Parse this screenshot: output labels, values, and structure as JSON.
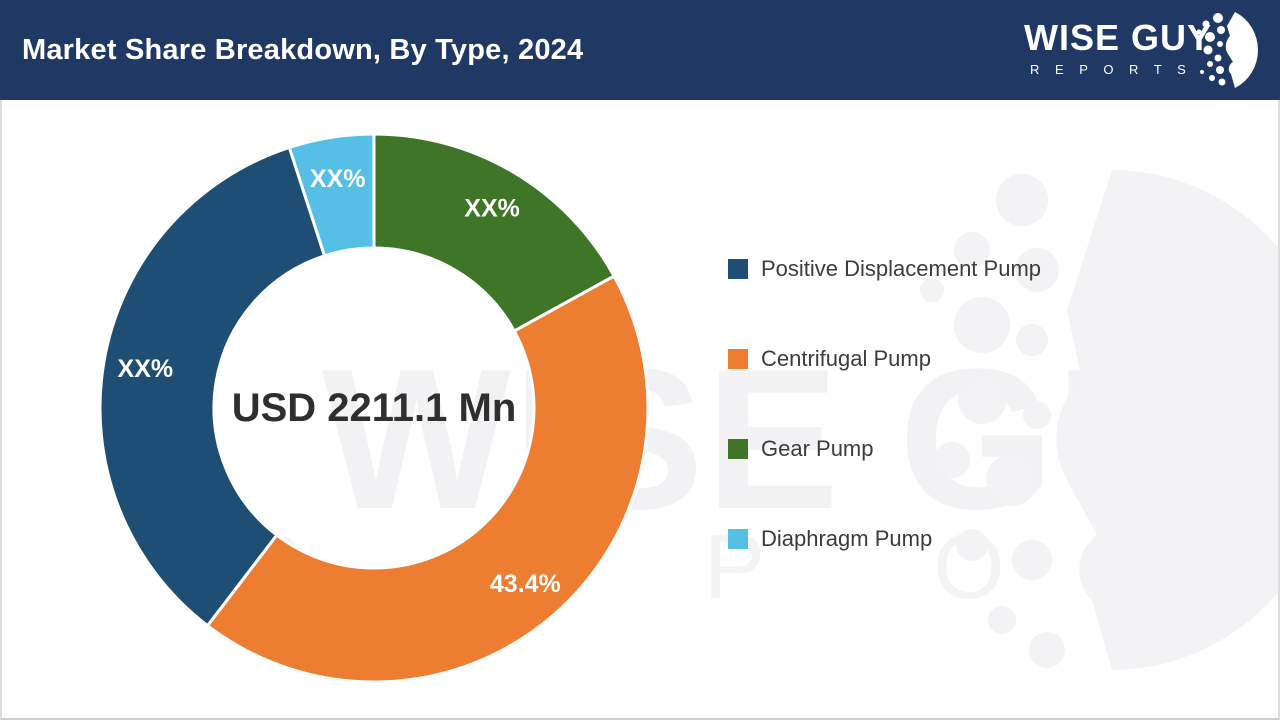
{
  "header": {
    "title": "Market Share Breakdown, By Type, 2024",
    "background_color": "#203864",
    "logo": {
      "line1": "WISE GUY",
      "line2": "R E P O R T S"
    }
  },
  "watermark": {
    "line1": "WISE GUY",
    "line2": "R E P O R T S"
  },
  "chart_data": {
    "type": "pie",
    "subtype": "donut",
    "title": "Market Share Breakdown, By Type, 2024",
    "center_label": "USD 2211.1 Mn",
    "angle_convention": "degrees clockwise from 12 o'clock",
    "segments": [
      {
        "name": "Positive Displacement Pump",
        "color": "#1f4e74",
        "approx_value_pct": 34.6,
        "display_label": "XX%",
        "start_deg": 217.4,
        "end_deg": 342.0
      },
      {
        "name": "Centrifugal Pump",
        "color": "#ed7d31",
        "approx_value_pct": 43.4,
        "display_label": "43.4%",
        "start_deg": 61.2,
        "end_deg": 217.4
      },
      {
        "name": "Gear Pump",
        "color": "#3e7526",
        "approx_value_pct": 17.0,
        "display_label": "XX%",
        "start_deg": 0.0,
        "end_deg": 61.2
      },
      {
        "name": "Diaphragm Pump",
        "color": "#55bfe6",
        "approx_value_pct": 5.0,
        "display_label": "XX%",
        "start_deg": 342.0,
        "end_deg": 360.0
      }
    ],
    "geometry": {
      "outer_radius": 274,
      "inner_radius": 160,
      "label_radius": 232
    },
    "legend_position": "right"
  },
  "legend": {
    "items": [
      {
        "label": "Positive Displacement Pump",
        "color": "#1f4e74"
      },
      {
        "label": "Centrifugal Pump",
        "color": "#ed7d31"
      },
      {
        "label": "Gear Pump",
        "color": "#3e7526"
      },
      {
        "label": "Diaphragm Pump",
        "color": "#55bfe6"
      }
    ]
  }
}
